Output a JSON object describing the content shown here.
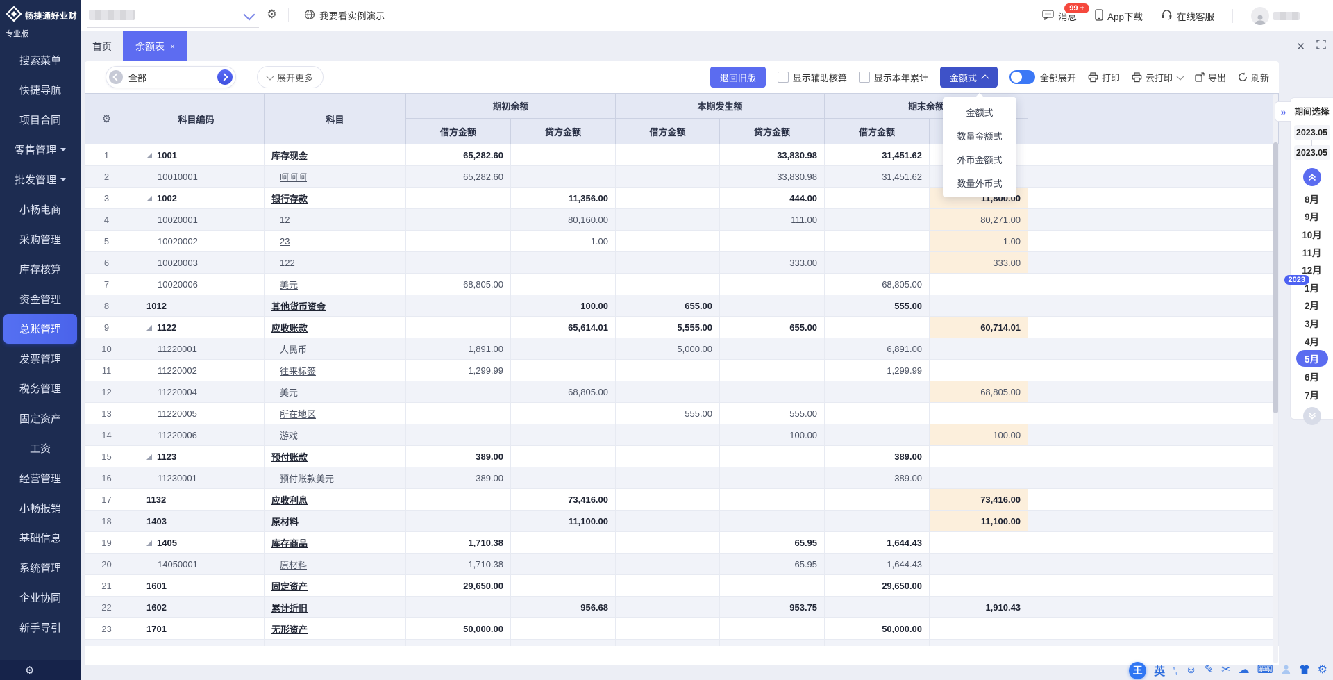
{
  "app": {
    "brand": "畅捷通好业财",
    "edition": "专业版"
  },
  "sidebar": {
    "items": [
      {
        "label": "搜索菜单"
      },
      {
        "label": "快捷导航"
      },
      {
        "label": "项目合同"
      },
      {
        "label": "零售管理",
        "arrow": true
      },
      {
        "label": "批发管理",
        "arrow": true
      },
      {
        "label": "小畅电商"
      },
      {
        "label": "采购管理"
      },
      {
        "label": "库存核算"
      },
      {
        "label": "资金管理"
      },
      {
        "label": "总账管理",
        "selected": true
      },
      {
        "label": "发票管理"
      },
      {
        "label": "税务管理"
      },
      {
        "label": "固定资产"
      },
      {
        "label": "工资"
      },
      {
        "label": "经营管理"
      },
      {
        "label": "小畅报销"
      },
      {
        "label": "基础信息"
      },
      {
        "label": "系统管理"
      },
      {
        "label": "企业协同"
      },
      {
        "label": "新手导引"
      }
    ]
  },
  "topbar": {
    "demo_link": "我要看实例演示",
    "messages": "消息",
    "messages_badge": "99 +",
    "app_download": "App下载",
    "online_support": "在线客服"
  },
  "tabs": {
    "home": "首页",
    "active": "余额表",
    "close_glyph": "×",
    "strip_close_glyph": "✕"
  },
  "toolbar": {
    "scope_value": "全部",
    "expand_more": "展开更多",
    "back_old": "退回旧版",
    "show_aux": "显示辅助核算",
    "show_ytd": "显示本年累计",
    "format_button": "金额式",
    "toggle_label": "全部展开",
    "print": "打印",
    "cloud_print": "云打印",
    "export": "导出",
    "refresh": "刷新"
  },
  "format_menu": {
    "items": [
      "金额式",
      "数量金额式",
      "外币金额式",
      "数量外币式"
    ]
  },
  "table": {
    "headers": {
      "code": "科目编码",
      "name": "科目",
      "opening": "期初余额",
      "current": "本期发生额",
      "ending": "期末余额",
      "debit": "借方金额",
      "credit": "贷方金额"
    },
    "rows": [
      {
        "code": "1001",
        "name": "库存现金",
        "level": "parent",
        "tri": true,
        "od": "65,282.60",
        "oc": "",
        "cd": "",
        "cc": "33,830.98",
        "ed": "31,451.62",
        "ec": "",
        "warn": false
      },
      {
        "code": "10010001",
        "name": "呵呵呵",
        "level": "child",
        "tri": false,
        "od": "65,282.60",
        "oc": "",
        "cd": "",
        "cc": "33,830.98",
        "ed": "31,451.62",
        "ec": "",
        "warn": false
      },
      {
        "code": "1002",
        "name": "银行存款",
        "level": "parent",
        "tri": true,
        "od": "",
        "oc": "11,356.00",
        "cd": "",
        "cc": "444.00",
        "ed": "",
        "ec": "11,800.00",
        "warn": true
      },
      {
        "code": "10020001",
        "name": "12",
        "level": "child",
        "tri": false,
        "od": "",
        "oc": "80,160.00",
        "cd": "",
        "cc": "111.00",
        "ed": "",
        "ec": "80,271.00",
        "warn": true
      },
      {
        "code": "10020002",
        "name": "23",
        "level": "child",
        "tri": false,
        "od": "",
        "oc": "1.00",
        "cd": "",
        "cc": "",
        "ed": "",
        "ec": "1.00",
        "warn": true
      },
      {
        "code": "10020003",
        "name": "122",
        "level": "child",
        "tri": false,
        "od": "",
        "oc": "",
        "cd": "",
        "cc": "333.00",
        "ed": "",
        "ec": "333.00",
        "warn": true
      },
      {
        "code": "10020006",
        "name": "美元",
        "level": "child",
        "tri": false,
        "od": "68,805.00",
        "oc": "",
        "cd": "",
        "cc": "",
        "ed": "68,805.00",
        "ec": "",
        "warn": false
      },
      {
        "code": "1012",
        "name": "其他货币资金",
        "level": "parent",
        "tri": false,
        "od": "",
        "oc": "100.00",
        "cd": "655.00",
        "cc": "",
        "ed": "555.00",
        "ec": "",
        "warn": false
      },
      {
        "code": "1122",
        "name": "应收账款",
        "level": "parent",
        "tri": true,
        "od": "",
        "oc": "65,614.01",
        "cd": "5,555.00",
        "cc": "655.00",
        "ed": "",
        "ec": "60,714.01",
        "warn": true
      },
      {
        "code": "11220001",
        "name": "人民币",
        "level": "child",
        "tri": false,
        "od": "1,891.00",
        "oc": "",
        "cd": "5,000.00",
        "cc": "",
        "ed": "6,891.00",
        "ec": "",
        "warn": false
      },
      {
        "code": "11220002",
        "name": "往来标签",
        "level": "child",
        "tri": false,
        "od": "1,299.99",
        "oc": "",
        "cd": "",
        "cc": "",
        "ed": "1,299.99",
        "ec": "",
        "warn": false
      },
      {
        "code": "11220004",
        "name": "美元",
        "level": "child",
        "tri": false,
        "od": "",
        "oc": "68,805.00",
        "cd": "",
        "cc": "",
        "ed": "",
        "ec": "68,805.00",
        "warn": true
      },
      {
        "code": "11220005",
        "name": "所在地区",
        "level": "child",
        "tri": false,
        "od": "",
        "oc": "",
        "cd": "555.00",
        "cc": "555.00",
        "ed": "",
        "ec": "",
        "warn": false
      },
      {
        "code": "11220006",
        "name": "游戏",
        "level": "child",
        "tri": false,
        "od": "",
        "oc": "",
        "cd": "",
        "cc": "100.00",
        "ed": "",
        "ec": "100.00",
        "warn": true
      },
      {
        "code": "1123",
        "name": "预付账款",
        "level": "parent",
        "tri": true,
        "od": "389.00",
        "oc": "",
        "cd": "",
        "cc": "",
        "ed": "389.00",
        "ec": "",
        "warn": false
      },
      {
        "code": "11230001",
        "name": "预付账款美元",
        "level": "child",
        "tri": false,
        "od": "389.00",
        "oc": "",
        "cd": "",
        "cc": "",
        "ed": "389.00",
        "ec": "",
        "warn": false
      },
      {
        "code": "1132",
        "name": "应收利息",
        "level": "parent",
        "tri": false,
        "od": "",
        "oc": "73,416.00",
        "cd": "",
        "cc": "",
        "ed": "",
        "ec": "73,416.00",
        "warn": true
      },
      {
        "code": "1403",
        "name": "原材料",
        "level": "parent",
        "tri": false,
        "od": "",
        "oc": "11,100.00",
        "cd": "",
        "cc": "",
        "ed": "",
        "ec": "11,100.00",
        "warn": true
      },
      {
        "code": "1405",
        "name": "库存商品",
        "level": "parent",
        "tri": true,
        "od": "1,710.38",
        "oc": "",
        "cd": "",
        "cc": "65.95",
        "ed": "1,644.43",
        "ec": "",
        "warn": false
      },
      {
        "code": "14050001",
        "name": "原材料",
        "level": "child",
        "tri": false,
        "od": "1,710.38",
        "oc": "",
        "cd": "",
        "cc": "65.95",
        "ed": "1,644.43",
        "ec": "",
        "warn": false
      },
      {
        "code": "1601",
        "name": "固定资产",
        "level": "parent",
        "tri": false,
        "od": "29,650.00",
        "oc": "",
        "cd": "",
        "cc": "",
        "ed": "29,650.00",
        "ec": "",
        "warn": false
      },
      {
        "code": "1602",
        "name": "累计折旧",
        "level": "parent",
        "tri": false,
        "od": "",
        "oc": "956.68",
        "cd": "",
        "cc": "953.75",
        "ed": "",
        "ec": "1,910.43",
        "warn": false
      },
      {
        "code": "1701",
        "name": "无形资产",
        "level": "parent",
        "tri": false,
        "od": "50,000.00",
        "oc": "",
        "cd": "",
        "cc": "",
        "ed": "50,000.00",
        "ec": "",
        "warn": false
      }
    ]
  },
  "period_panel": {
    "title": "期间选择",
    "from": "2023.05",
    "to": "2023.05",
    "months": [
      {
        "label": "8月"
      },
      {
        "label": "9月"
      },
      {
        "label": "10月"
      },
      {
        "label": "11月"
      },
      {
        "label": "12月"
      },
      {
        "label": "1月",
        "year_badge": "2023"
      },
      {
        "label": "2月"
      },
      {
        "label": "3月"
      },
      {
        "label": "4月"
      },
      {
        "label": "5月",
        "selected": true
      },
      {
        "label": "6月"
      },
      {
        "label": "7月"
      }
    ]
  },
  "ime_bar": {
    "items": [
      {
        "name": "ime-logo-wang",
        "glyph": "王"
      },
      {
        "name": "english-mode",
        "glyph": "英"
      },
      {
        "name": "punctuation-mode",
        "glyph": "’,"
      },
      {
        "name": "emoji-icon",
        "glyph": "☺"
      },
      {
        "name": "handwriting-icon",
        "glyph": "✎"
      },
      {
        "name": "screenshot-icon",
        "glyph": "✂"
      },
      {
        "name": "cloud-input-icon",
        "glyph": "☁"
      },
      {
        "name": "keyboard-icon",
        "glyph": "⌨"
      },
      {
        "name": "account-icon",
        "glyph": "person"
      },
      {
        "name": "skin-icon",
        "glyph": "shirt"
      },
      {
        "name": "settings-icon",
        "glyph": "⚙"
      }
    ]
  },
  "colors": {
    "accent": "#5b6cf0",
    "accent_dark": "#3e52c8",
    "sidebar_bg": "#1d2c51",
    "warn_cell": "#fcefdc",
    "badge_red": "#f5483d"
  }
}
